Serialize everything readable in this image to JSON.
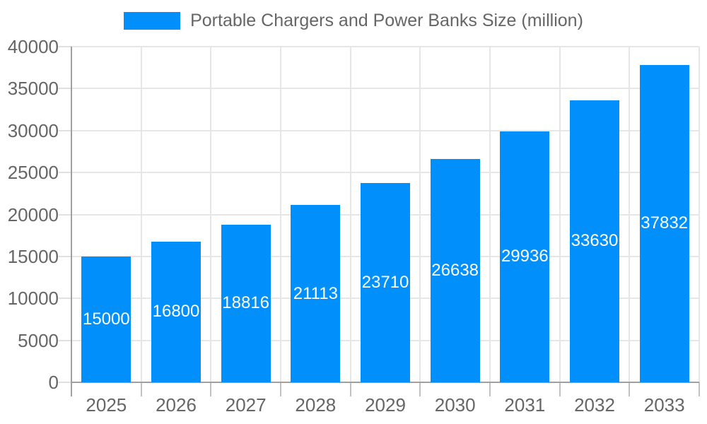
{
  "legend": {
    "label": "Portable Chargers and Power Banks Size (million)"
  },
  "chart_data": {
    "type": "bar",
    "title": "Portable Chargers and Power Banks Size (million)",
    "categories": [
      "2025",
      "2026",
      "2027",
      "2028",
      "2029",
      "2030",
      "2031",
      "2032",
      "2033"
    ],
    "values": [
      15000,
      16800,
      18816,
      21113,
      23710,
      26638,
      29936,
      33630,
      37832
    ],
    "xlabel": "",
    "ylabel": "",
    "ylim": [
      0,
      40000
    ],
    "yticks": [
      0,
      5000,
      10000,
      15000,
      20000,
      25000,
      30000,
      35000,
      40000
    ],
    "grid": true,
    "legend_position": "top-center",
    "value_label_position": "inside-center",
    "colors": {
      "bar": "#008FFB",
      "value_label": "#FFFFFF",
      "text": "#666666",
      "grid": "#E6E6E6",
      "axis_line": "#A0A0A0",
      "tick_x": "#C2C2C2",
      "tick_y": "#E0E0E0",
      "background": "#FFFFFF"
    }
  }
}
